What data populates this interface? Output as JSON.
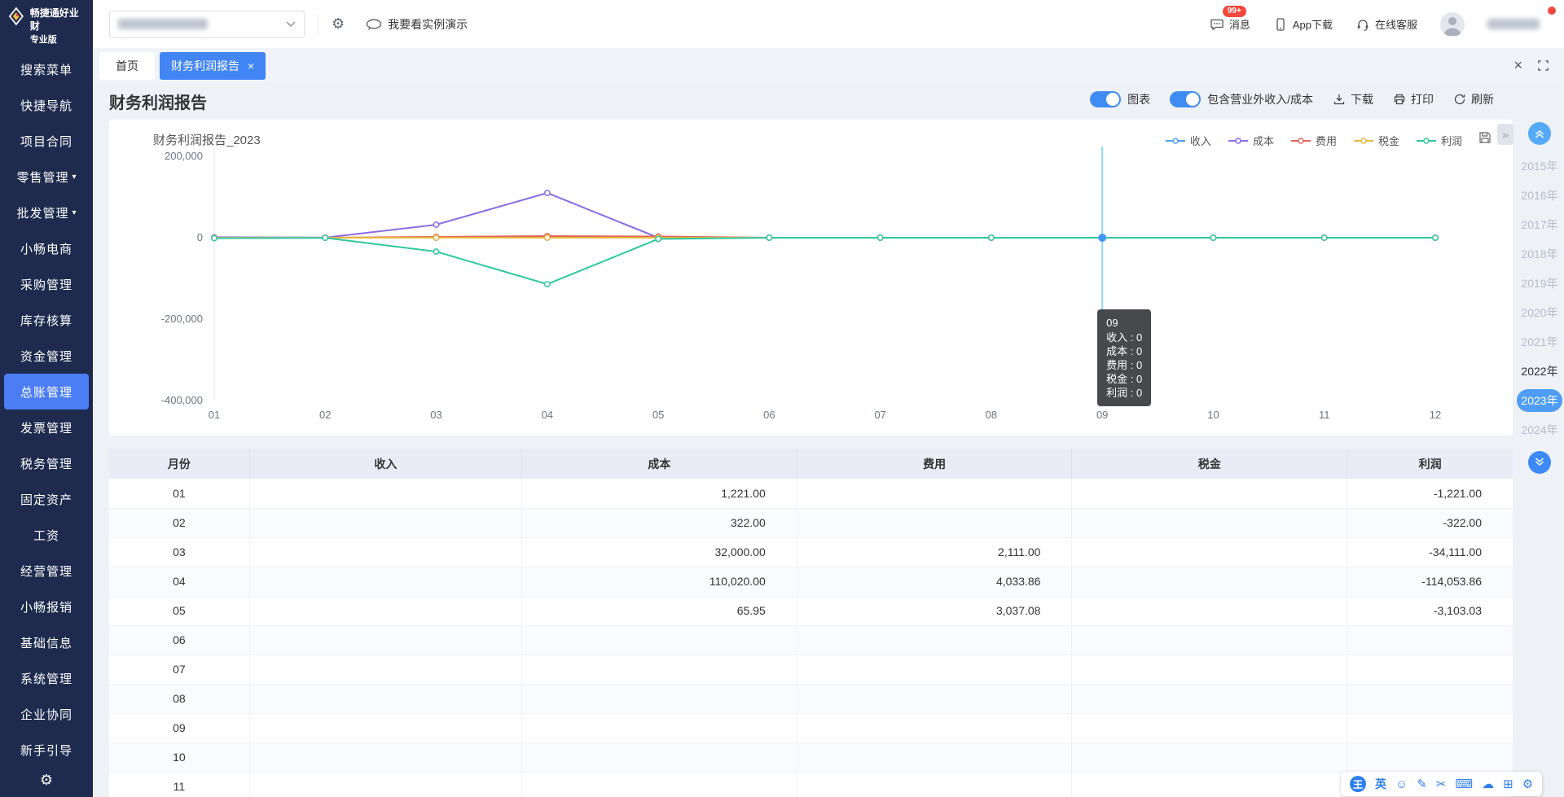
{
  "app": {
    "brand_line1": "畅捷通好业财",
    "brand_line2": "专业版",
    "demo_text": "我要看实例演示",
    "messages_label": "消息",
    "messages_badge": "99+",
    "app_download_label": "App下载",
    "support_label": "在线客服"
  },
  "sidebar": {
    "items": [
      {
        "label": "搜索菜单"
      },
      {
        "label": "快捷导航"
      },
      {
        "label": "项目合同"
      },
      {
        "label": "零售管理",
        "expandable": true
      },
      {
        "label": "批发管理",
        "expandable": true
      },
      {
        "label": "小畅电商"
      },
      {
        "label": "采购管理"
      },
      {
        "label": "库存核算"
      },
      {
        "label": "资金管理"
      },
      {
        "label": "总账管理",
        "active": true
      },
      {
        "label": "发票管理"
      },
      {
        "label": "税务管理"
      },
      {
        "label": "固定资产"
      },
      {
        "label": "工资"
      },
      {
        "label": "经营管理"
      },
      {
        "label": "小畅报销"
      },
      {
        "label": "基础信息"
      },
      {
        "label": "系统管理"
      },
      {
        "label": "企业协同"
      },
      {
        "label": "新手引导"
      }
    ]
  },
  "tabs": [
    {
      "label": "首页",
      "active": false,
      "closable": false
    },
    {
      "label": "财务利润报告",
      "active": true,
      "closable": true
    }
  ],
  "page": {
    "title": "财务利润报告",
    "toggle_chart_label": "图表",
    "toggle_include_label": "包含营业外收入/成本",
    "download_label": "下载",
    "print_label": "打印",
    "refresh_label": "刷新"
  },
  "chart_data": {
    "type": "line",
    "title": "财务利润报告_2023",
    "categories": [
      "01",
      "02",
      "03",
      "04",
      "05",
      "06",
      "07",
      "08",
      "09",
      "10",
      "11",
      "12"
    ],
    "series": [
      {
        "name": "收入",
        "color": "#4ba2f5",
        "values": [
          0,
          0,
          0,
          0,
          0,
          0,
          0,
          0,
          0,
          0,
          0,
          0
        ]
      },
      {
        "name": "成本",
        "color": "#8a6ce5",
        "values": [
          1221,
          322,
          32000,
          110020,
          65.95,
          0,
          0,
          0,
          0,
          0,
          0,
          0
        ]
      },
      {
        "name": "费用",
        "color": "#e2625a",
        "values": [
          0,
          0,
          2111,
          4033.86,
          3037.08,
          0,
          0,
          0,
          0,
          0,
          0,
          0
        ]
      },
      {
        "name": "税金",
        "color": "#e8b93f",
        "values": [
          0,
          0,
          0,
          0,
          0,
          0,
          0,
          0,
          0,
          0,
          0,
          0
        ]
      },
      {
        "name": "利润",
        "color": "#2fc7a0",
        "values": [
          -1221,
          -322,
          -34111,
          -114053.86,
          -3103.03,
          0,
          0,
          0,
          0,
          0,
          0,
          0
        ]
      }
    ],
    "ylim": [
      -400000,
      200000
    ],
    "yticks": [
      200000,
      0,
      -200000,
      -400000
    ],
    "ytick_labels": [
      "200,000",
      "0",
      "-200,000",
      "-400,000"
    ],
    "grid": false,
    "legend_position": "top-right",
    "tooltip": {
      "month_index": 8,
      "title": "09",
      "rows": [
        "收入 : 0",
        "成本 : 0",
        "费用 : 0",
        "税金 : 0",
        "利润 : 0"
      ]
    }
  },
  "table": {
    "headers": [
      "月份",
      "收入",
      "成本",
      "费用",
      "税金",
      "利润"
    ],
    "rows": [
      [
        "01",
        "",
        "1,221.00",
        "",
        "",
        "-1,221.00"
      ],
      [
        "02",
        "",
        "322.00",
        "",
        "",
        "-322.00"
      ],
      [
        "03",
        "",
        "32,000.00",
        "2,111.00",
        "",
        "-34,111.00"
      ],
      [
        "04",
        "",
        "110,020.00",
        "4,033.86",
        "",
        "-114,053.86"
      ],
      [
        "05",
        "",
        "65.95",
        "3,037.08",
        "",
        "-3,103.03"
      ],
      [
        "06",
        "",
        "",
        "",
        "",
        ""
      ],
      [
        "07",
        "",
        "",
        "",
        "",
        ""
      ],
      [
        "08",
        "",
        "",
        "",
        "",
        ""
      ],
      [
        "09",
        "",
        "",
        "",
        "",
        ""
      ],
      [
        "10",
        "",
        "",
        "",
        "",
        ""
      ],
      [
        "11",
        "",
        "",
        "",
        "",
        ""
      ]
    ]
  },
  "year_panel": {
    "years": [
      {
        "label": "2015年",
        "state": "muted"
      },
      {
        "label": "2016年",
        "state": "muted"
      },
      {
        "label": "2017年",
        "state": "muted"
      },
      {
        "label": "2018年",
        "state": "muted"
      },
      {
        "label": "2019年",
        "state": "muted"
      },
      {
        "label": "2020年",
        "state": "muted"
      },
      {
        "label": "2021年",
        "state": "muted"
      },
      {
        "label": "2022年",
        "state": "normal"
      },
      {
        "label": "2023年",
        "state": "active"
      },
      {
        "label": "2024年",
        "state": "muted"
      }
    ]
  },
  "ime": {
    "lang_button": "王",
    "mode": "英"
  }
}
